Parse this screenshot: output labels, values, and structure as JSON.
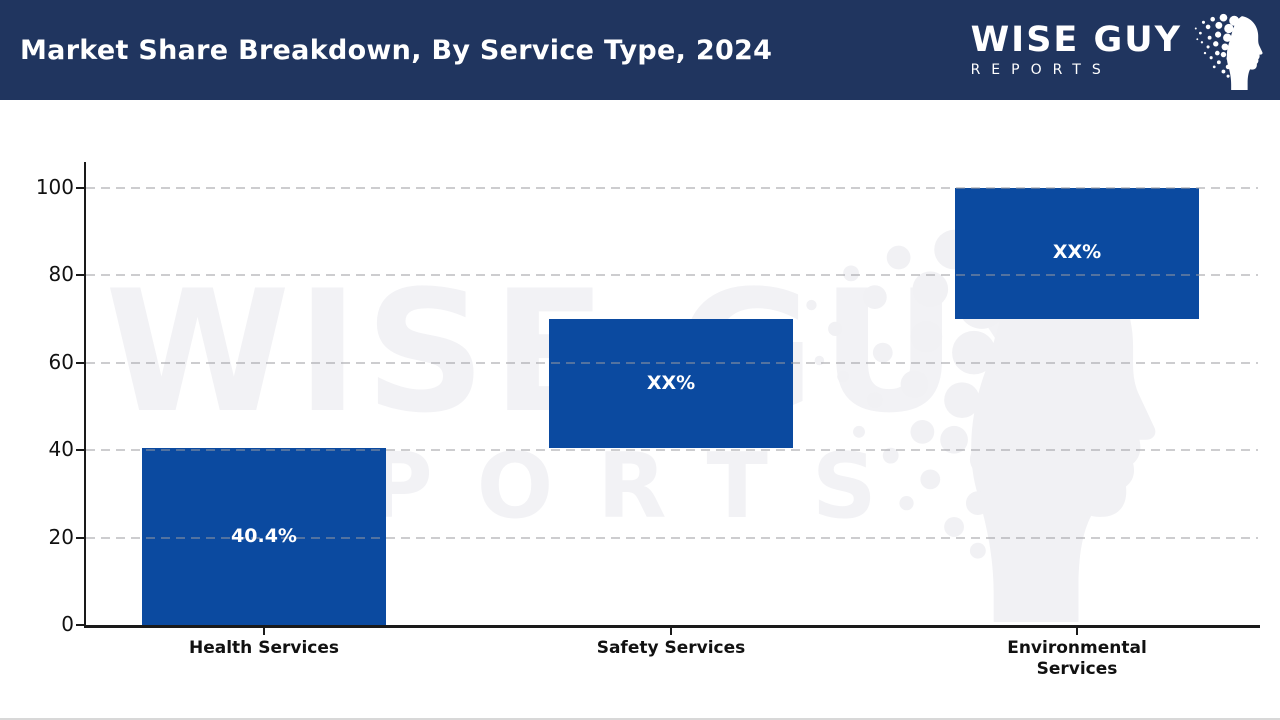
{
  "header": {
    "title": "Market Share Breakdown, By Service Type, 2024",
    "logo": {
      "line1": "WISE GUY",
      "line2": "REPORTS"
    }
  },
  "watermark": {
    "line1": "WISE GUY",
    "line2": "REPORTS"
  },
  "colors": {
    "header_background": "#20355f",
    "bar_fill": "#0b4aa0",
    "bar_label": "#ffffff",
    "axis": "#1a1a1a",
    "gridline": "#b8b8bc",
    "watermark": "#f2f2f5"
  },
  "chart_data": {
    "type": "bar",
    "subtype": "floating-waterfall",
    "title": "Market Share Breakdown, By Service Type, 2024",
    "categories": [
      "Health Services",
      "Safety Services",
      "Environmental Services"
    ],
    "bars": [
      {
        "category": "Health Services",
        "start": 0,
        "end": 40.4,
        "label": "40.4%"
      },
      {
        "category": "Safety Services",
        "start": 40.4,
        "end": 70,
        "label": "XX%"
      },
      {
        "category": "Environmental Services",
        "start": 70,
        "end": 100,
        "label": "XX%"
      }
    ],
    "ylim": [
      0,
      100
    ],
    "yticks": [
      0,
      20,
      40,
      60,
      80,
      100
    ],
    "xlabel": "",
    "ylabel": "",
    "grid": "horizontal-dashed",
    "legend": null,
    "bar_color": "#0b4aa0",
    "bar_label_color": "#ffffff"
  }
}
